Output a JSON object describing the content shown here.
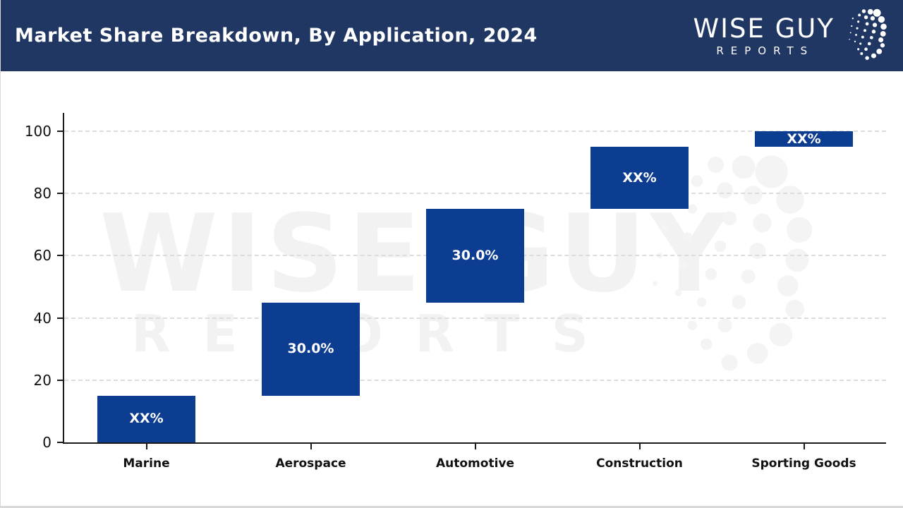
{
  "header": {
    "title": "Market Share Breakdown, By Application, 2024",
    "bg_color": "#203663",
    "logo": {
      "primary": "WISE GUY",
      "secondary": "REPORTS"
    }
  },
  "watermark": {
    "primary": "WISE GUY",
    "secondary": "REPORTS"
  },
  "chart_data": {
    "type": "bar",
    "variant": "waterfall",
    "title": "Market Share Breakdown, By Application, 2024",
    "categories": [
      "Marine",
      "Aerospace",
      "Automotive",
      "Construction",
      "Sporting Goods"
    ],
    "segments": [
      {
        "category": "Marine",
        "from": 0,
        "to": 15,
        "label": "XX%"
      },
      {
        "category": "Aerospace",
        "from": 15,
        "to": 45,
        "label": "30.0%"
      },
      {
        "category": "Automotive",
        "from": 45,
        "to": 75,
        "label": "30.0%"
      },
      {
        "category": "Construction",
        "from": 75,
        "to": 95,
        "label": "XX%"
      },
      {
        "category": "Sporting Goods",
        "from": 95,
        "to": 100,
        "label": "XX%"
      }
    ],
    "values": [
      15,
      30,
      30,
      20,
      5
    ],
    "bar_labels": [
      "XX%",
      "30.0%",
      "30.0%",
      "XX%",
      "XX%"
    ],
    "xlabel": "",
    "ylabel": "",
    "y_ticks": [
      0,
      20,
      40,
      60,
      80,
      100
    ],
    "ylim": [
      0,
      106
    ],
    "grid": {
      "axis": "y",
      "style": "dashed",
      "color": "#dcdcdc"
    },
    "bar_color": "#0d3d91",
    "bar_label_color": "#ffffff",
    "axis_color": "#1a1a1a",
    "legend": null
  }
}
